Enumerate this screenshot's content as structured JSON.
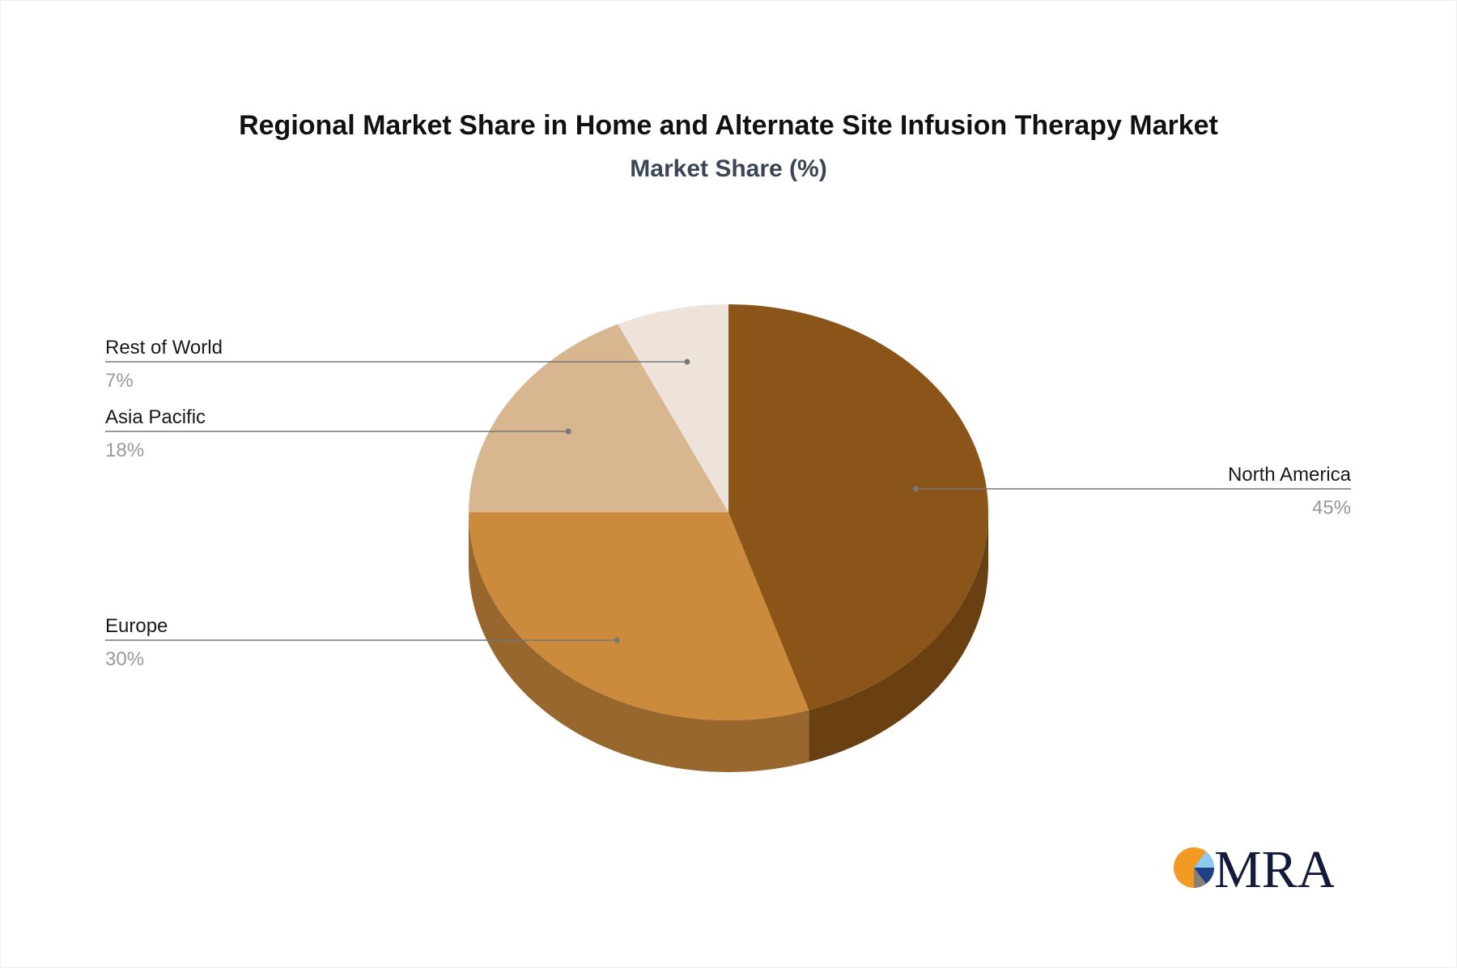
{
  "chart_data": {
    "type": "pie",
    "title": "Regional Market Share in Home and Alternate Site Infusion Therapy Market",
    "subtitle": "Market Share (%)",
    "slices": [
      {
        "label": "North America",
        "value": 45,
        "display": "45%",
        "color": "#8B5418",
        "side_color": "#6A4012",
        "label_side": "right"
      },
      {
        "label": "Europe",
        "value": 30,
        "display": "30%",
        "color": "#CB8A3C",
        "side_color": "#98672D",
        "label_side": "left"
      },
      {
        "label": "Asia Pacific",
        "value": 18,
        "display": "18%",
        "color": "#D7B690",
        "side_color": "#A88A68",
        "label_side": "left"
      },
      {
        "label": "Rest of World",
        "value": 7,
        "display": "7%",
        "color": "#EDE3DA",
        "side_color": "#C4B8AC",
        "label_side": "left"
      }
    ],
    "style": "3d-pie"
  },
  "logo": {
    "text": "MRA"
  }
}
